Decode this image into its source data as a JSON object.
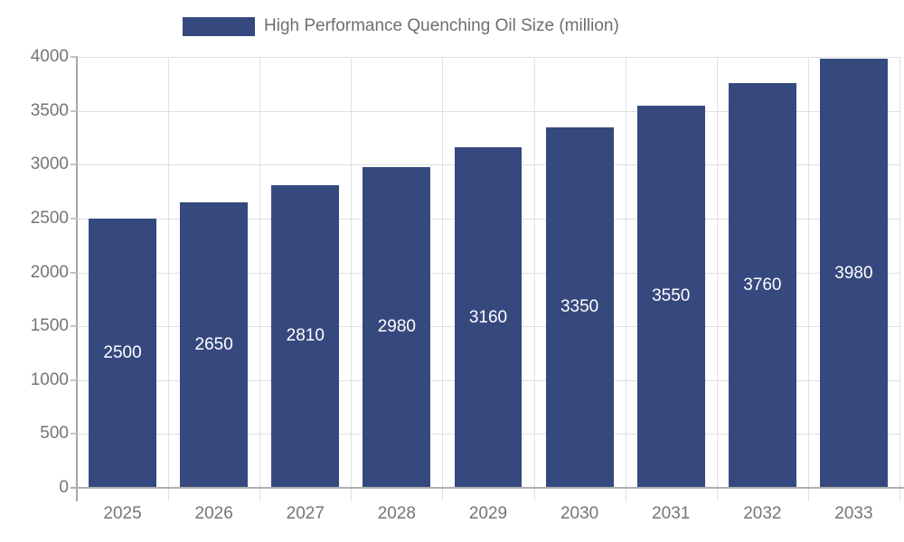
{
  "legend": {
    "label": "High Performance Quenching Oil Size (million)"
  },
  "colors": {
    "bar": "#36497E",
    "legend_text": "#6E6E6E",
    "axis_label": "#757575",
    "grid_line": "#E0E0E0",
    "axis_line": "#A6A6A6",
    "baseline": "#B0B0B0",
    "tick": "#C4C4C4",
    "value_label": "#FFFFFF",
    "background": "#FFFFFF"
  },
  "chart_data": {
    "type": "bar",
    "title": "High Performance Quenching Oil Size (million)",
    "categories": [
      "2025",
      "2026",
      "2027",
      "2028",
      "2029",
      "2030",
      "2031",
      "2032",
      "2033"
    ],
    "series": [
      {
        "name": "High Performance Quenching Oil Size (million)",
        "values": [
          2500,
          2650,
          2810,
          2980,
          3160,
          3350,
          3550,
          3760,
          3980
        ]
      }
    ],
    "values": [
      2500,
      2650,
      2810,
      2980,
      3160,
      3350,
      3550,
      3760,
      3980
    ],
    "xlabel": "",
    "ylabel": "",
    "ylim": [
      0,
      4000
    ],
    "yticks": [
      0,
      500,
      1000,
      1500,
      2000,
      2500,
      3000,
      3500,
      4000
    ],
    "grid": true,
    "legend_position": "top",
    "bar_color": "#36497E",
    "bar_width_fraction": 0.74,
    "value_label_position": "inside-center"
  }
}
